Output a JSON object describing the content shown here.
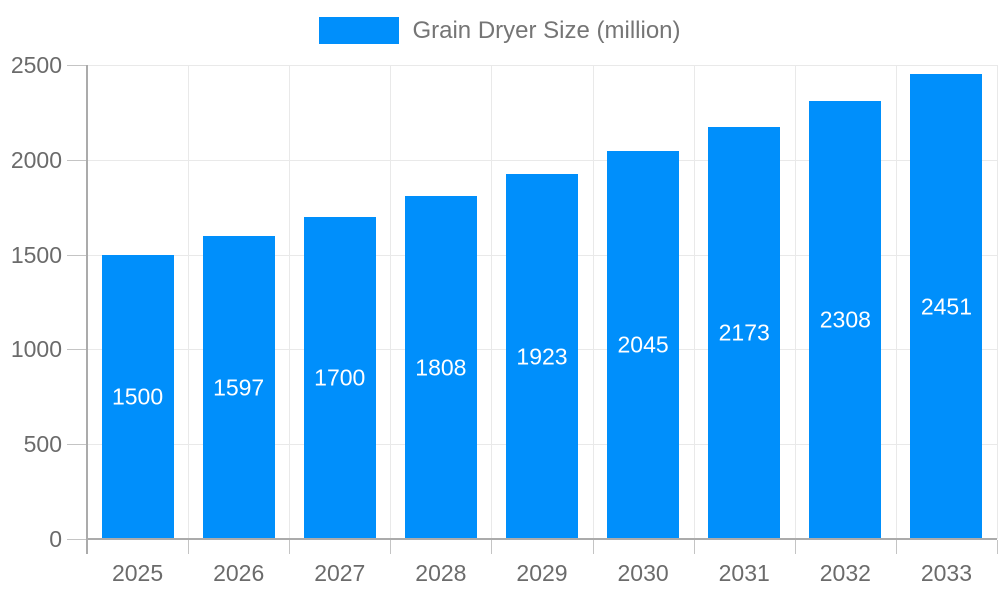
{
  "chart_data": {
    "type": "bar",
    "title": "",
    "xlabel": "",
    "ylabel": "",
    "categories": [
      "2025",
      "2026",
      "2027",
      "2028",
      "2029",
      "2030",
      "2031",
      "2032",
      "2033"
    ],
    "series": [
      {
        "name": "Grain Dryer Size (million)",
        "values": [
          1500,
          1597,
          1700,
          1808,
          1923,
          2045,
          2173,
          2308,
          2451
        ]
      }
    ],
    "data_labels": [
      "1500",
      "1597",
      "1700",
      "1808",
      "1923",
      "2045",
      "2173",
      "2308",
      "2451"
    ],
    "ylim": [
      0,
      2500
    ],
    "yticks": [
      0,
      500,
      1000,
      1500,
      2000,
      2500
    ],
    "ytick_labels": [
      "0",
      "500",
      "1000",
      "1500",
      "2000",
      "2500"
    ],
    "grid": true,
    "legend_position": "top",
    "colors": {
      "bar": "#008FFB",
      "bar_value_text": "#ffffff",
      "legend_text": "#757575",
      "axis_text": "#6b6b6b",
      "gridline": "#e9e9e9",
      "axis_line": "#ababab",
      "tick": "#c4c4c4"
    }
  }
}
